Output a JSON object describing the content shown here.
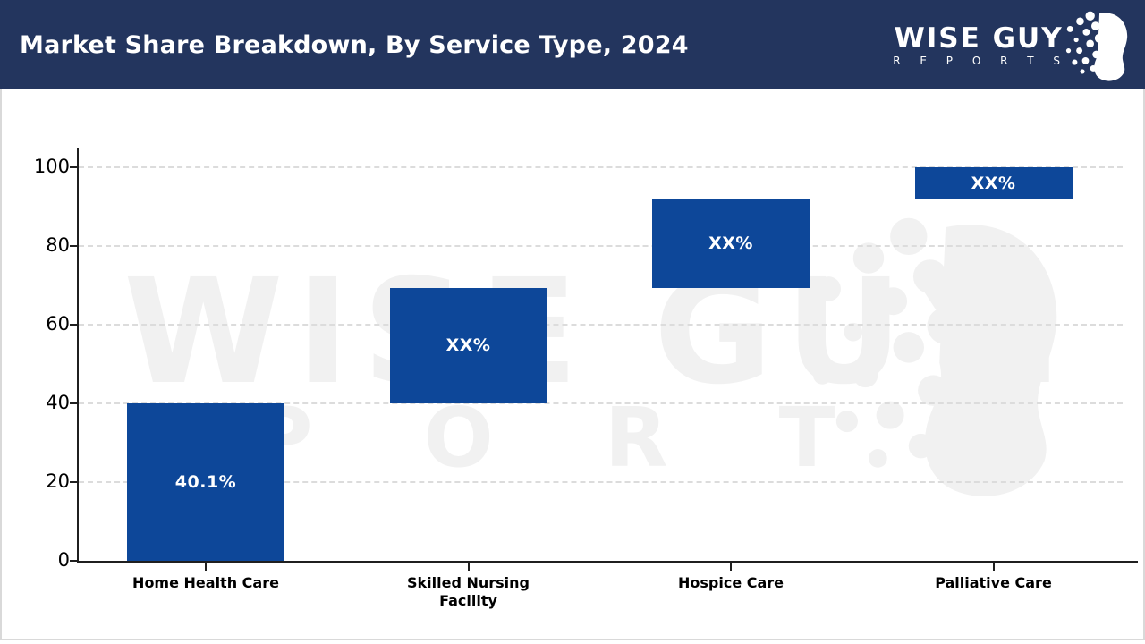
{
  "header": {
    "title": "Market Share Breakdown, By Service Type, 2024",
    "logo": {
      "line1": "WISE GUY",
      "line2": "R E P O R T S"
    }
  },
  "watermark": {
    "line1": "WISE GUY.",
    "line2": "P O R T S"
  },
  "chart_data": {
    "type": "bar",
    "subtype": "floating-waterfall",
    "title": "Market Share Breakdown, By Service Type, 2024",
    "categories": [
      "Home Health Care",
      "Skilled Nursing Facility",
      "Hospice Care",
      "Palliative Care"
    ],
    "bars": [
      {
        "category": "Home Health Care",
        "start": 0,
        "end": 40.1,
        "label": "40.1%"
      },
      {
        "category": "Skilled Nursing Facility",
        "start": 40.1,
        "end": 69.4,
        "label": "XX%"
      },
      {
        "category": "Hospice Care",
        "start": 69.4,
        "end": 92.0,
        "label": "XX%"
      },
      {
        "category": "Palliative Care",
        "start": 92.0,
        "end": 100.0,
        "label": "XX%"
      }
    ],
    "yticks": [
      0,
      20,
      40,
      60,
      80,
      100
    ],
    "ylim": [
      0,
      105
    ],
    "xlabel": "",
    "ylabel": "",
    "grid": "dashed-horizontal",
    "legend": "none"
  },
  "colors": {
    "header_bg": "#23355e",
    "bar": "#0d4799",
    "bar_label": "#ffffff",
    "grid": "#dcdcdc",
    "axis": "#1f1f1f",
    "tick_text": "#000000",
    "watermark": "#f1f1f1",
    "frame_border": "#d9d9d9"
  }
}
